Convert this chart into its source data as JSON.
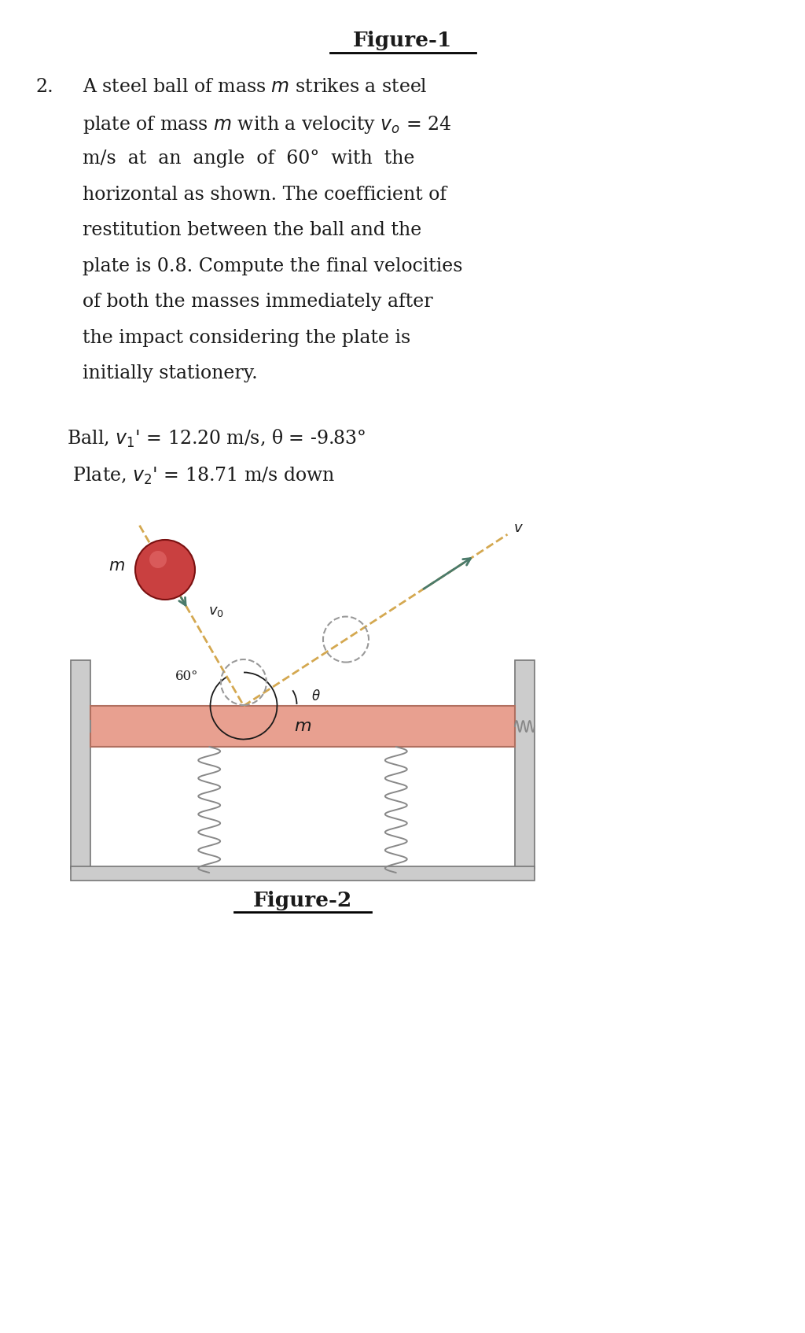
{
  "title": "Figure-1",
  "figure2_title": "Figure-2",
  "problem_number": "2.",
  "problem_text_lines": [
    "A steel ball of mass $m$ strikes a steel",
    "plate of mass $m$ with a velocity $v_o$ = 24",
    "m/s  at  an  angle  of  60°  with  the",
    "horizontal as shown. The coefficient of",
    "restitution between the ball and the",
    "plate is 0.8. Compute the final velocities",
    "of both the masses immediately after",
    "the impact considering the plate is",
    "initially stationery."
  ],
  "answer_line1": "Ball, $v_1$' = 12.20 m/s, θ = -9.83°",
  "answer_line2": " Plate, $v_2$' = 18.71 m/s down",
  "background_color": "#ffffff",
  "text_color": "#1a1a1a",
  "ball_color": "#c94040",
  "ball_highlight": "#e87070",
  "plate_color": "#e8a090",
  "plate_edge_color": "#b07060",
  "wall_color": "#cccccc",
  "spring_color": "#888888",
  "arrow_color": "#4a7a6a",
  "dashed_line_color": "#d4a850",
  "dashed_ball_color": "#999999"
}
